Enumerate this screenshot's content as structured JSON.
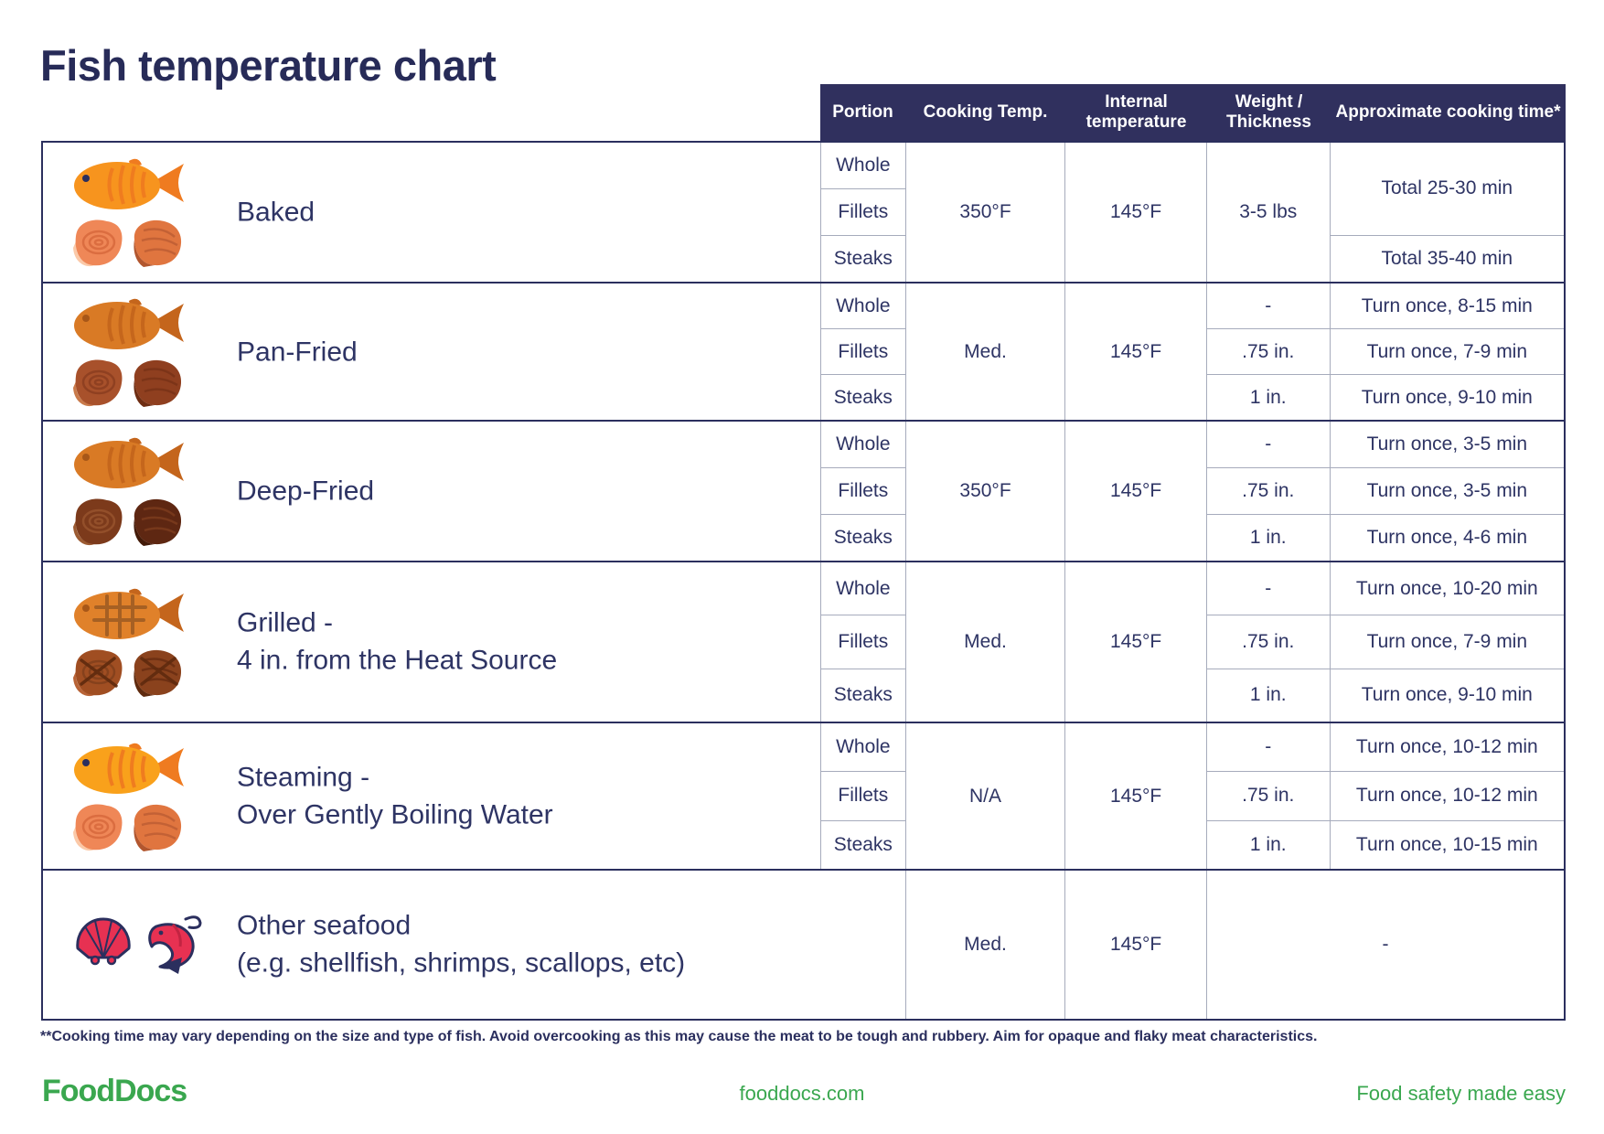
{
  "title": "Fish temperature chart",
  "header": {
    "columns": [
      "Portion",
      "Cooking Temp.",
      "Internal temperature",
      "Weight / Thickness",
      "Approximate cooking time*"
    ]
  },
  "methods": [
    {
      "name_lines": [
        "Baked"
      ],
      "portions": [
        "Whole",
        "Fillets",
        "Steaks"
      ],
      "cooking_temp": "350°F",
      "internal_temp": "145°F",
      "weight": {
        "type": "merged",
        "value": "3-5 lbs"
      },
      "time": {
        "type": "split-2-1",
        "values": [
          "Total 25-30 min",
          "Total 35-40 min"
        ]
      },
      "icon": {
        "type": "fish",
        "body": "#f7941e",
        "fin": "#ef7b20",
        "stripe": "#ef7b20",
        "eye": "#2b2f5e",
        "grill": false,
        "mark": "",
        "pieceA": "#ef8757",
        "ringA": "#d96b3e",
        "paleA": "#fbc9a8",
        "pieceB": "#e0753f",
        "ringB": "#c05f35",
        "darkB": "#b2562e"
      }
    },
    {
      "name_lines": [
        "Pan-Fried"
      ],
      "portions": [
        "Whole",
        "Fillets",
        "Steaks"
      ],
      "cooking_temp": "Med.",
      "internal_temp": "145°F",
      "weight": {
        "type": "rows",
        "values": [
          "-",
          ".75 in.",
          "1 in."
        ]
      },
      "time": {
        "type": "rows",
        "values": [
          "Turn once, 8-15 min",
          "Turn once, 7-9 min",
          "Turn once, 9-10 min"
        ]
      },
      "icon": {
        "type": "fish",
        "body": "#d97a25",
        "fin": "#c4651c",
        "stripe": "#c4651c",
        "eye": "#a85718",
        "grill": false,
        "mark": "",
        "pieceA": "#a8512b",
        "ringA": "#8d3f20",
        "paleA": "#c97a4a",
        "pieceB": "#8f3f1f",
        "ringB": "#7a3318",
        "darkB": "#6e2d12"
      }
    },
    {
      "name_lines": [
        "Deep-Fried"
      ],
      "portions": [
        "Whole",
        "Fillets",
        "Steaks"
      ],
      "cooking_temp": "350°F",
      "internal_temp": "145°F",
      "weight": {
        "type": "rows",
        "values": [
          "-",
          ".75 in.",
          "1 in."
        ]
      },
      "time": {
        "type": "rows",
        "values": [
          "Turn once, 3-5 min",
          "Turn once, 3-5 min",
          "Turn once, 4-6 min"
        ]
      },
      "icon": {
        "type": "fish",
        "body": "#d97a25",
        "fin": "#c4651c",
        "stripe": "#c4651c",
        "eye": "#a85718",
        "grill": false,
        "mark": "",
        "pieceA": "#7c3a1b",
        "ringA": "#96522c",
        "paleA": "#9c5b32",
        "pieceB": "#5e2712",
        "ringB": "#7a3a1d",
        "darkB": "#431a08"
      }
    },
    {
      "name_lines": [
        "Grilled -",
        "4 in. from the Heat Source"
      ],
      "portions": [
        "Whole",
        "Fillets",
        "Steaks"
      ],
      "cooking_temp": "Med.",
      "internal_temp": "145°F",
      "weight": {
        "type": "rows",
        "values": [
          "-",
          ".75 in.",
          "1 in."
        ]
      },
      "time": {
        "type": "rows",
        "values": [
          "Turn once, 10-20 min",
          "Turn once, 7-9 min",
          "Turn once, 9-10 min"
        ]
      },
      "icon": {
        "type": "fish",
        "body": "#e0812a",
        "fin": "#c4651c",
        "stripe": "#c4651c",
        "eye": "#a85718",
        "grill": true,
        "mark": "#9c5b22",
        "pieceA": "#a04e22",
        "ringA": "#83401c",
        "paleA": "#b86336",
        "pieceB": "#8a421d",
        "ringB": "#6b2f12",
        "darkB": "#5f2a0e"
      }
    },
    {
      "name_lines": [
        "Steaming -",
        "Over Gently Boiling Water"
      ],
      "portions": [
        "Whole",
        "Fillets",
        "Steaks"
      ],
      "cooking_temp": "N/A",
      "internal_temp": "145°F",
      "weight": {
        "type": "rows",
        "values": [
          "-",
          ".75 in.",
          "1 in."
        ]
      },
      "time": {
        "type": "rows",
        "values": [
          "Turn once, 10-12 min",
          "Turn once, 10-12 min",
          "Turn once, 10-15 min"
        ]
      },
      "icon": {
        "type": "fish",
        "body": "#f9a11b",
        "fin": "#ef7b20",
        "stripe": "#ef7b20",
        "eye": "#2b2f5e",
        "grill": false,
        "mark": "",
        "pieceA": "#ef8757",
        "ringA": "#d96b3e",
        "paleA": "#fbc9a8",
        "pieceB": "#e0753f",
        "ringB": "#c05f35",
        "darkB": "#b2562e"
      }
    },
    {
      "name_lines": [
        "Other seafood",
        "(e.g. shellfish, shrimps, scallops, etc)"
      ],
      "portions": [],
      "cooking_temp": "Med.",
      "internal_temp": "145°F",
      "weight": {
        "type": "merged-with-time"
      },
      "time": {
        "type": "merged",
        "value": "-"
      },
      "icon": {
        "type": "seafood",
        "main": "#e73152",
        "accent": "#c22442",
        "outline": "#2b2f5e"
      }
    }
  ],
  "footnote": "**Cooking time may vary depending on the size and type of fish. Avoid overcooking as this may cause the meat to be tough and rubbery. Aim for opaque and flaky meat characteristics.",
  "footer": {
    "logo": "FoodDocs",
    "center": "fooddocs.com",
    "right": "Food safety made easy"
  },
  "colors": {
    "navy": "#2b2f5e",
    "header_bg": "#30305e",
    "cell_text": "#2e3464",
    "thin_border": "#a6abbc",
    "green": "#3aa74f",
    "background": "#ffffff"
  }
}
